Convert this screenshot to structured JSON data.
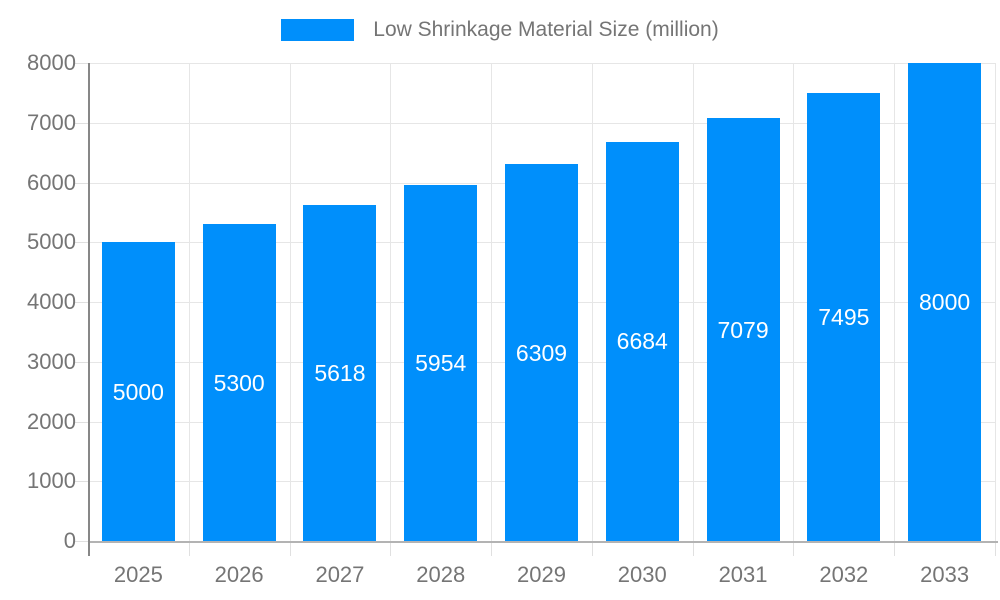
{
  "chart_data": {
    "type": "bar",
    "title": "",
    "legend_label": "Low Shrinkage Material Size (million)",
    "legend_position": "top",
    "categories": [
      "2025",
      "2026",
      "2027",
      "2028",
      "2029",
      "2030",
      "2031",
      "2032",
      "2033"
    ],
    "series": [
      {
        "name": "Low Shrinkage Material Size (million)",
        "values": [
          5000,
          5300,
          5618,
          5954,
          6309,
          6684,
          7079,
          7495,
          8000
        ]
      }
    ],
    "xlabel": "",
    "ylabel": "",
    "ylim": [
      0,
      8000
    ],
    "yticks": [
      0,
      1000,
      2000,
      3000,
      4000,
      5000,
      6000,
      7000,
      8000
    ],
    "grid": true,
    "value_labels": "inside-center",
    "colors": {
      "bar": "#008FFB",
      "grid": "#e6e6e6",
      "tick": "#e0e0e0",
      "y_axis": "#878787",
      "x_axis": "#b3b3b3",
      "axis_label": "#757575",
      "value_label": "#ffffff",
      "background": "#ffffff"
    }
  }
}
